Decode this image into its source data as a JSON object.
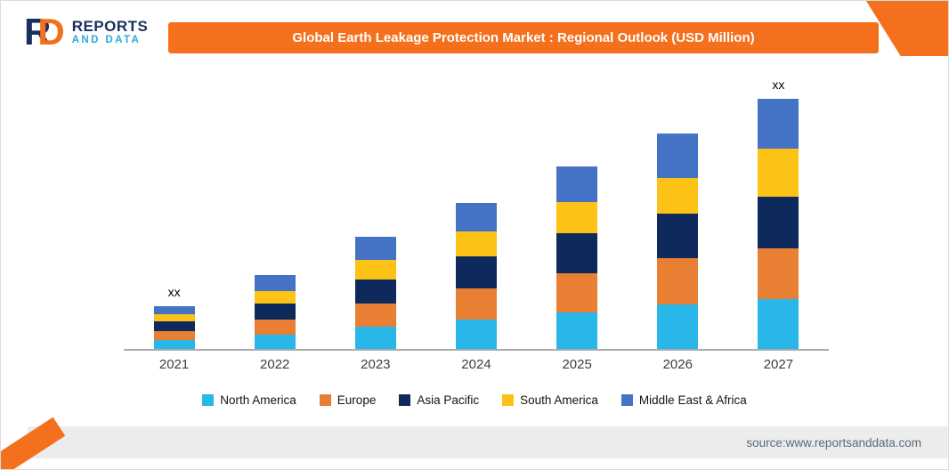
{
  "header": {
    "title": "Global Earth Leakage Protection Market : Regional Outlook (USD Million)",
    "logo": {
      "mark_r": "R",
      "mark_d": "D",
      "line1": "REPORTS",
      "line2": "AND DATA"
    }
  },
  "footer": {
    "source": "source:www.reportsanddata.com"
  },
  "colors": {
    "accent_orange": "#f4701d",
    "logo_navy": "#1b2f5e",
    "logo_cyan": "#2aa9e0",
    "axis_gray": "#ababab",
    "band_gray": "#ececec"
  },
  "chart_data": {
    "type": "bar",
    "stacked": true,
    "title": "Global Earth Leakage Protection Market : Regional Outlook (USD Million)",
    "value_unit": "USD Million",
    "xlabel": "",
    "ylabel": "",
    "y_axis_shown": false,
    "grid": false,
    "legend_position": "bottom",
    "categories": [
      "2021",
      "2022",
      "2023",
      "2024",
      "2025",
      "2026",
      "2027"
    ],
    "series": [
      {
        "name": "North America",
        "color": "#29b6e8",
        "values": [
          10,
          16,
          25,
          33,
          41,
          50,
          56
        ]
      },
      {
        "name": "Europe",
        "color": "#e87f33",
        "values": [
          10,
          17,
          26,
          35,
          44,
          52,
          57
        ]
      },
      {
        "name": "Asia Pacific",
        "color": "#0e2a5c",
        "values": [
          11,
          18,
          27,
          36,
          45,
          50,
          58
        ]
      },
      {
        "name": "South America",
        "color": "#fdc216",
        "values": [
          8,
          14,
          22,
          28,
          35,
          40,
          54
        ]
      },
      {
        "name": "Middle East & Africa",
        "color": "#4472c4",
        "values": [
          9,
          18,
          26,
          32,
          40,
          50,
          56
        ]
      }
    ],
    "totals_estimated_relative": [
      48,
      83,
      126,
      164,
      205,
      242,
      281
    ],
    "bar_value_labels": [
      {
        "category": "2021",
        "text": "xx"
      },
      {
        "category": "2027",
        "text": "xx"
      }
    ]
  }
}
